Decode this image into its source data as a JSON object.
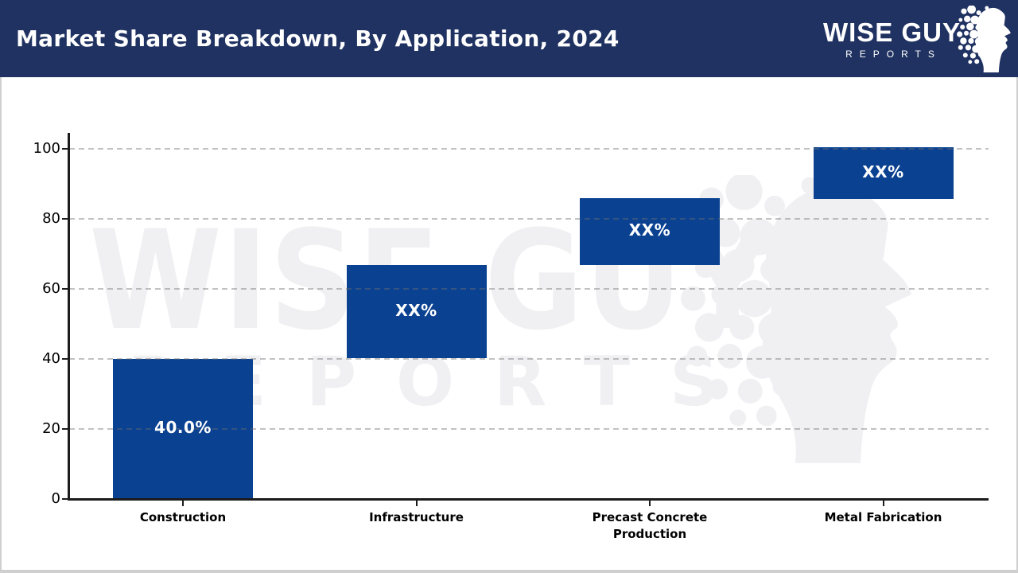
{
  "header": {
    "title": "Market Share Breakdown, By Application, 2024",
    "logo": {
      "primary": "WISE GUY",
      "secondary": "REPORTS"
    }
  },
  "watermark": {
    "primary": "WISE GUY",
    "secondary": "REPORTS"
  },
  "chart_data": {
    "type": "bar",
    "subtype": "floating-segment-waterfall",
    "title": "Market Share Breakdown, By Application, 2024",
    "categories": [
      "Construction",
      "Infrastructure",
      "Precast Concrete Production",
      "Metal Fabrication"
    ],
    "segments": [
      {
        "category": "Construction",
        "start": 0,
        "end": 40.0,
        "label": "40.0%"
      },
      {
        "category": "Infrastructure",
        "start": 40.2,
        "end": 66.8,
        "label": "XX%"
      },
      {
        "category": "Precast Concrete Production",
        "start": 66.8,
        "end": 85.9,
        "label": "XX%"
      },
      {
        "category": "Metal Fabrication",
        "start": 85.7,
        "end": 100.4,
        "label": "XX%"
      }
    ],
    "yticks": [
      0,
      20,
      40,
      60,
      80,
      100
    ],
    "ylim": [
      0,
      104
    ],
    "xlabel": "",
    "ylabel": "",
    "grid": "dashed-horizontal",
    "legend": null,
    "bar_color": "#0a4191",
    "value_label_color": "#ffffff",
    "header_bg_color": "#203261",
    "axis_color": "#1c1c1c",
    "watermark_color": "#f0f0f3"
  }
}
